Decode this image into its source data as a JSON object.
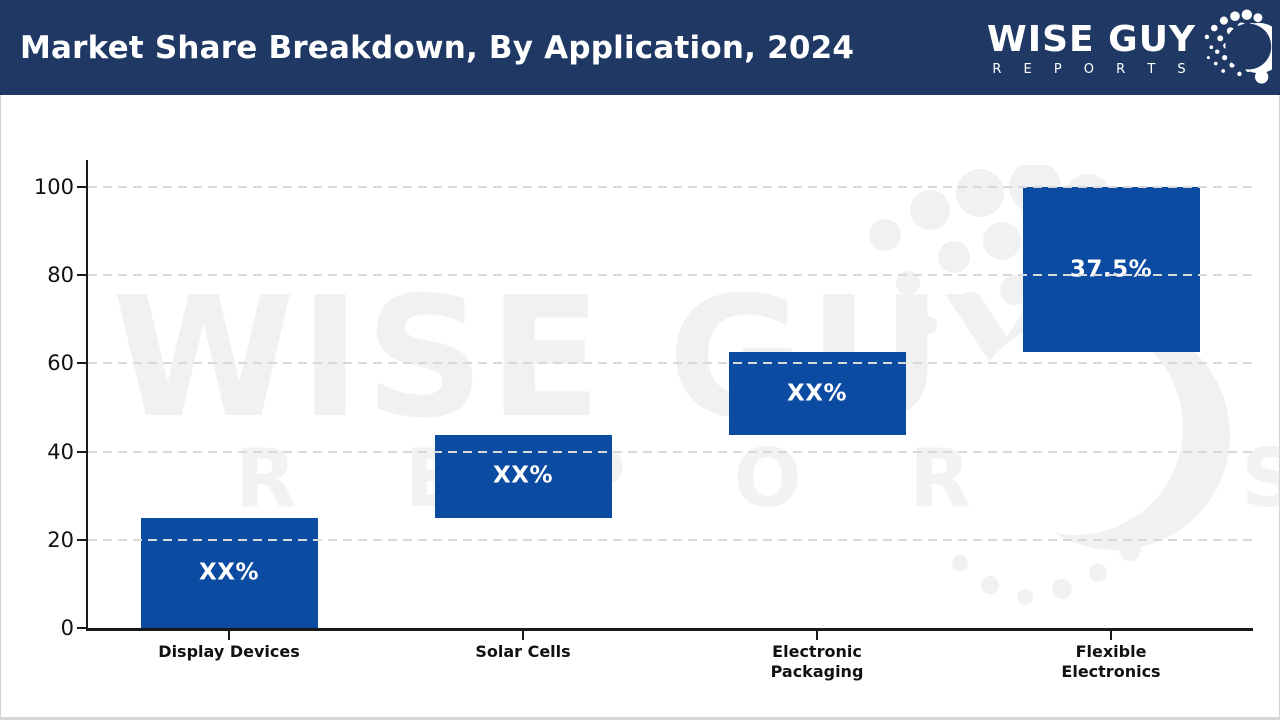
{
  "header": {
    "title": "Market Share Breakdown, By Application, 2024",
    "bg_color": "#1f3864",
    "logo": {
      "line1": "WISE GUY",
      "line2": "R E P O R T S"
    }
  },
  "watermark": {
    "line1": "WISE GUY",
    "line2": "R E P O R T S"
  },
  "chart_data": {
    "type": "bar",
    "subtype": "waterfall",
    "title": "Market Share Breakdown, By Application, 2024",
    "categories": [
      "Display Devices",
      "Solar Cells",
      "Electronic\nPackaging",
      "Flexible\nElectronics"
    ],
    "segments": [
      {
        "category": "Display Devices",
        "start": 0,
        "end": 25,
        "label": "XX%"
      },
      {
        "category": "Solar Cells",
        "start": 25,
        "end": 43.75,
        "label": "XX%"
      },
      {
        "category": "Electronic Packaging",
        "start": 43.75,
        "end": 62.5,
        "label": "XX%"
      },
      {
        "category": "Flexible Electronics",
        "start": 62.5,
        "end": 100,
        "label": "37.5%"
      }
    ],
    "yticks": [
      0,
      20,
      40,
      60,
      80,
      100
    ],
    "ylim": [
      0,
      100
    ],
    "unit": "%",
    "bar_color": "#0b4ba1",
    "grid": "dashed-horizontal",
    "gridline_color": "#d9d9d9",
    "axis_color": "#1a1a1a",
    "legend": "none"
  }
}
